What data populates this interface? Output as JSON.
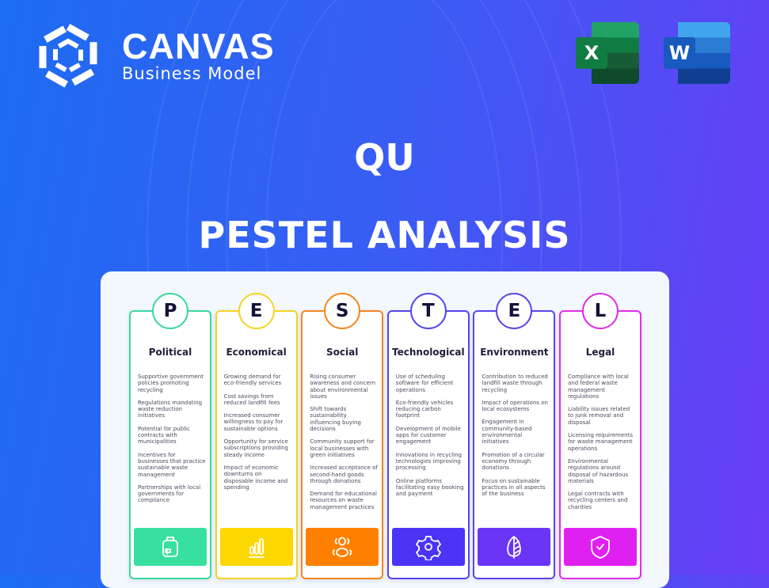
{
  "brand": {
    "name": "CANVAS",
    "tagline": "Business Model"
  },
  "apps": [
    {
      "name": "Excel",
      "letter": "X",
      "color": "#1f7a45"
    },
    {
      "name": "Word",
      "letter": "W",
      "color": "#2557b8"
    }
  ],
  "header": {
    "company": "QU",
    "title": "PESTEL ANALYSIS"
  },
  "cards": [
    {
      "letter": "P",
      "name": "Political",
      "color": "#3bd8a0",
      "fill": "#38e09f",
      "icon": "briefcase-icon",
      "items": [
        "Supportive government policies promoting recycling",
        "Regulations mandating waste reduction initiatives",
        "Potential for public contracts with municipalities",
        "Incentives for businesses that practice sustainable waste management",
        "Partnerships with local governments for compliance"
      ]
    },
    {
      "letter": "E",
      "name": "Economical",
      "color": "#f4d325",
      "fill": "#fcd800",
      "icon": "bar-chart-icon",
      "items": [
        "Growing demand for eco-friendly services",
        "Cost savings from reduced landfill fees",
        "Increased consumer willingness to pay for sustainable options",
        "Opportunity for service subscriptions providing steady income",
        "Impact of economic downturns on disposable income and spending"
      ]
    },
    {
      "letter": "S",
      "name": "Social",
      "color": "#f5861e",
      "fill": "#ff7f00",
      "icon": "users-icon",
      "items": [
        "Rising consumer awareness and concern about environmental issues",
        "Shift towards sustainability influencing buying decisions",
        "Community support for local businesses with green initiatives",
        "Increased acceptance of second-hand goods through donations",
        "Demand for educational resources on waste management practices"
      ]
    },
    {
      "letter": "T",
      "name": "Technological",
      "color": "#5346ef",
      "fill": "#4b34f5",
      "icon": "gear-icon",
      "items": [
        "Use of scheduling software for efficient operations",
        "Eco-friendly vehicles reducing carbon footprint",
        "Development of mobile apps for customer engagement",
        "Innovations in recycling technologies improving processing",
        "Online platforms facilitating easy booking and payment"
      ]
    },
    {
      "letter": "E",
      "name": "Environment",
      "color": "#5b45ea",
      "fill": "#6a35f5",
      "icon": "leaf-icon",
      "items": [
        "Contribution to reduced landfill waste through recycling",
        "Impact of operations on local ecosystems",
        "Engagement in community-based environmental initiatives",
        "Promotion of a circular economy through donations",
        "Focus on sustainable practices in all aspects of the business"
      ]
    },
    {
      "letter": "L",
      "name": "Legal",
      "color": "#e02ee6",
      "fill": "#e020f0",
      "icon": "shield-check-icon",
      "items": [
        "Compliance with local and federal waste management regulations",
        "Liability issues related to junk removal and disposal",
        "Licensing requirements for waste management operations",
        "Environmental regulations around disposal of hazardous materials",
        "Legal contracts with recycling centers and charities"
      ]
    }
  ]
}
